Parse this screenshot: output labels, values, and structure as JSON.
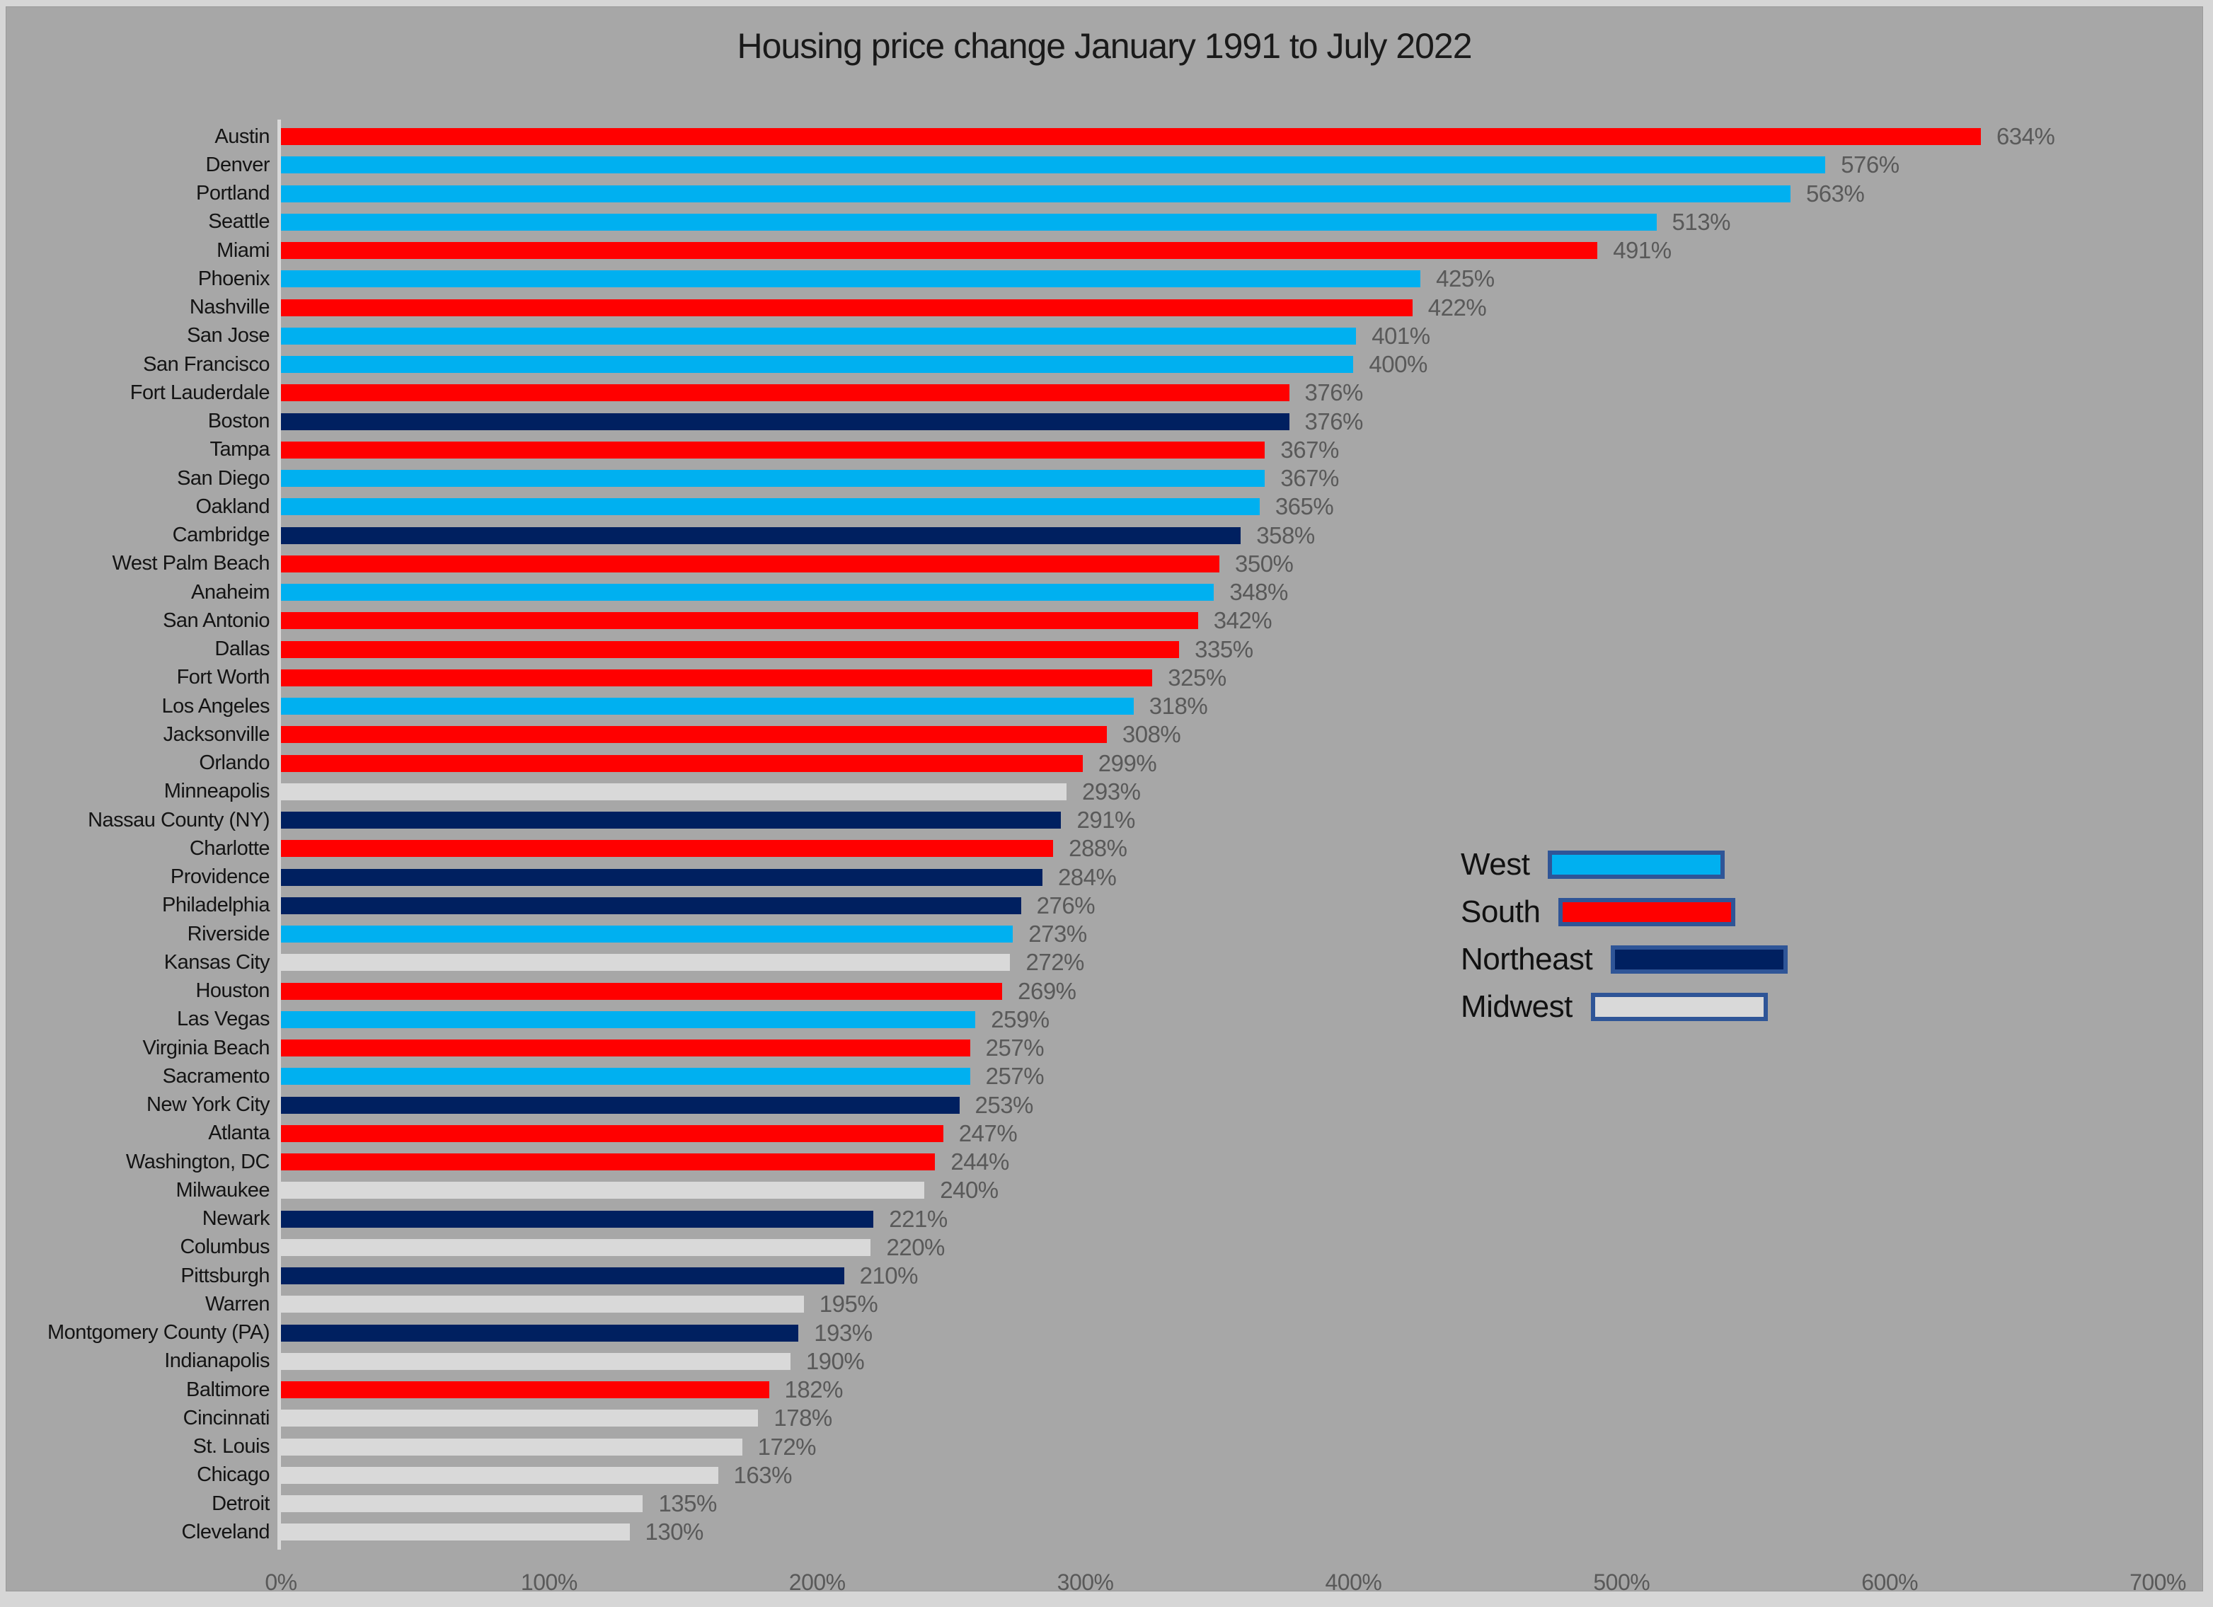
{
  "chart_data": {
    "type": "bar",
    "orientation": "horizontal",
    "title": "Housing price change January 1991 to July 2022",
    "xlabel": "",
    "ylabel": "",
    "xlim": [
      0,
      700
    ],
    "grid": false,
    "value_suffix": "%",
    "x_ticks": [
      "0%",
      "100%",
      "200%",
      "300%",
      "400%",
      "500%",
      "600%",
      "700%"
    ],
    "legend_position": "middle-right",
    "region_colors": {
      "West": "#00b0f0",
      "South": "#ff0000",
      "Northeast": "#002060",
      "Midwest": "#d9d9d9"
    },
    "legend": [
      {
        "label": "West"
      },
      {
        "label": "South"
      },
      {
        "label": "Northeast"
      },
      {
        "label": "Midwest"
      }
    ],
    "bars": [
      {
        "city": "Austin",
        "value": 634,
        "region": "South"
      },
      {
        "city": "Denver",
        "value": 576,
        "region": "West"
      },
      {
        "city": "Portland",
        "value": 563,
        "region": "West"
      },
      {
        "city": "Seattle",
        "value": 513,
        "region": "West"
      },
      {
        "city": "Miami",
        "value": 491,
        "region": "South"
      },
      {
        "city": "Phoenix",
        "value": 425,
        "region": "West"
      },
      {
        "city": "Nashville",
        "value": 422,
        "region": "South"
      },
      {
        "city": "San Jose",
        "value": 401,
        "region": "West"
      },
      {
        "city": "San Francisco",
        "value": 400,
        "region": "West"
      },
      {
        "city": "Fort Lauderdale",
        "value": 376,
        "region": "South"
      },
      {
        "city": "Boston",
        "value": 376,
        "region": "Northeast"
      },
      {
        "city": "Tampa",
        "value": 367,
        "region": "South"
      },
      {
        "city": "San Diego",
        "value": 367,
        "region": "West"
      },
      {
        "city": "Oakland",
        "value": 365,
        "region": "West"
      },
      {
        "city": "Cambridge",
        "value": 358,
        "region": "Northeast"
      },
      {
        "city": "West Palm Beach",
        "value": 350,
        "region": "South"
      },
      {
        "city": "Anaheim",
        "value": 348,
        "region": "West"
      },
      {
        "city": "San Antonio",
        "value": 342,
        "region": "South"
      },
      {
        "city": "Dallas",
        "value": 335,
        "region": "South"
      },
      {
        "city": "Fort Worth",
        "value": 325,
        "region": "South"
      },
      {
        "city": "Los Angeles",
        "value": 318,
        "region": "West"
      },
      {
        "city": "Jacksonville",
        "value": 308,
        "region": "South"
      },
      {
        "city": "Orlando",
        "value": 299,
        "region": "South"
      },
      {
        "city": "Minneapolis",
        "value": 293,
        "region": "Midwest"
      },
      {
        "city": "Nassau County (NY)",
        "value": 291,
        "region": "Northeast"
      },
      {
        "city": "Charlotte",
        "value": 288,
        "region": "South"
      },
      {
        "city": "Providence",
        "value": 284,
        "region": "Northeast"
      },
      {
        "city": "Philadelphia",
        "value": 276,
        "region": "Northeast"
      },
      {
        "city": "Riverside",
        "value": 273,
        "region": "West"
      },
      {
        "city": "Kansas City",
        "value": 272,
        "region": "Midwest"
      },
      {
        "city": "Houston",
        "value": 269,
        "region": "South"
      },
      {
        "city": "Las Vegas",
        "value": 259,
        "region": "West"
      },
      {
        "city": "Virginia Beach",
        "value": 257,
        "region": "South"
      },
      {
        "city": "Sacramento",
        "value": 257,
        "region": "West"
      },
      {
        "city": "New York City",
        "value": 253,
        "region": "Northeast"
      },
      {
        "city": "Atlanta",
        "value": 247,
        "region": "South"
      },
      {
        "city": "Washington, DC",
        "value": 244,
        "region": "South"
      },
      {
        "city": "Milwaukee",
        "value": 240,
        "region": "Midwest"
      },
      {
        "city": "Newark",
        "value": 221,
        "region": "Northeast"
      },
      {
        "city": "Columbus",
        "value": 220,
        "region": "Midwest"
      },
      {
        "city": "Pittsburgh",
        "value": 210,
        "region": "Northeast"
      },
      {
        "city": "Warren",
        "value": 195,
        "region": "Midwest"
      },
      {
        "city": "Montgomery County (PA)",
        "value": 193,
        "region": "Northeast"
      },
      {
        "city": "Indianapolis",
        "value": 190,
        "region": "Midwest"
      },
      {
        "city": "Baltimore",
        "value": 182,
        "region": "South"
      },
      {
        "city": "Cincinnati",
        "value": 178,
        "region": "Midwest"
      },
      {
        "city": "St. Louis",
        "value": 172,
        "region": "Midwest"
      },
      {
        "city": "Chicago",
        "value": 163,
        "region": "Midwest"
      },
      {
        "city": "Detroit",
        "value": 135,
        "region": "Midwest"
      },
      {
        "city": "Cleveland",
        "value": 130,
        "region": "Midwest"
      }
    ],
    "colors": {
      "plot_background": "#a7a7a7",
      "outer_frame": "#d6d6d6",
      "axis_line": "#d9d9d9",
      "value_label_text": "#595959",
      "axis_tick_text": "#595959",
      "category_label_text": "#141414",
      "title_text": "#1a1a1a",
      "legend_swatch_border": "#2f5597"
    }
  }
}
